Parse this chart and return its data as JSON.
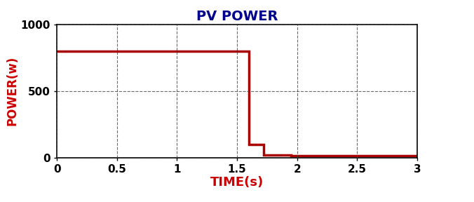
{
  "title": "PV POWER",
  "xlabel": "TIME(s)",
  "ylabel": "POWER(w)",
  "title_color": "#00008B",
  "xlabel_color": "#CC0000",
  "ylabel_color": "#CC0000",
  "line_color": "#AA0000",
  "line_width": 2.5,
  "xlim": [
    0,
    3
  ],
  "ylim": [
    0,
    1000
  ],
  "xticks": [
    0,
    0.5,
    1.0,
    1.5,
    2.0,
    2.5,
    3.0
  ],
  "yticks": [
    0,
    500,
    1000
  ],
  "grid_color": "#444444",
  "grid_style": "--",
  "background_color": "#ffffff",
  "signal_x": [
    0,
    1.6,
    1.6,
    1.72,
    1.72,
    1.95,
    1.95,
    3.0
  ],
  "signal_y": [
    800,
    800,
    100,
    100,
    20,
    20,
    15,
    15
  ],
  "title_fontsize": 14,
  "xlabel_fontsize": 13,
  "ylabel_fontsize": 12,
  "tick_fontsize": 11
}
